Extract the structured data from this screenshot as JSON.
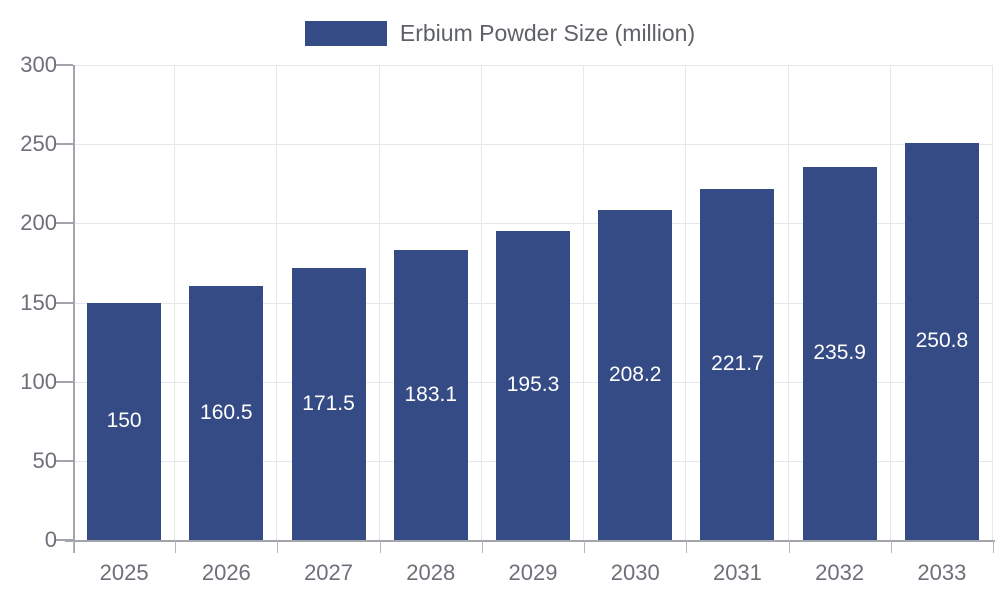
{
  "chart_data": {
    "type": "bar",
    "title": "",
    "legend": {
      "label": "Erbium Powder Size (million)",
      "position": "top-center"
    },
    "categories": [
      "2025",
      "2026",
      "2027",
      "2028",
      "2029",
      "2030",
      "2031",
      "2032",
      "2033"
    ],
    "values": [
      150,
      160.5,
      171.5,
      183.1,
      195.3,
      208.2,
      221.7,
      235.9,
      250.8
    ],
    "value_labels": [
      "150",
      "160.5",
      "171.5",
      "183.1",
      "195.3",
      "208.2",
      "221.7",
      "235.9",
      "250.8"
    ],
    "xlabel": "",
    "ylabel": "",
    "ylim": [
      0,
      300
    ],
    "y_ticks": [
      0,
      50,
      100,
      150,
      200,
      250,
      300
    ],
    "grid": "horizontal and vertical gridlines on",
    "value_label_position": "inside-center",
    "colors": {
      "bar": "#354b85",
      "bar_label": "#ffffff",
      "axis_line": "#a2a5ab",
      "tick": "#b3b6bc",
      "gridline": "#e5e7eb",
      "axis_label": "#6e7079",
      "legend_text": "#5e6268",
      "background": "#ffffff"
    }
  }
}
